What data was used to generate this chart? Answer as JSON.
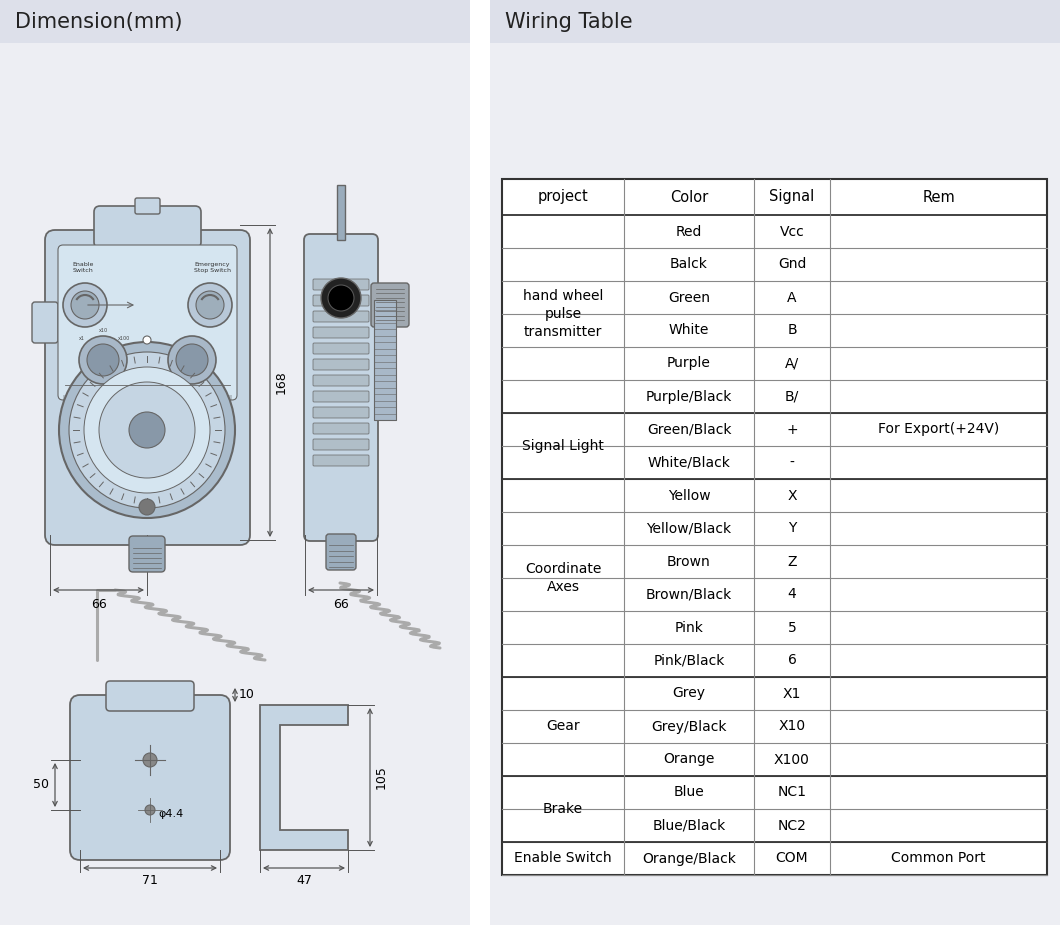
{
  "left_title": "Dimension(mm)",
  "right_title": "Wiring Table",
  "title_bg_color": "#dde0ea",
  "bg_color": "#edeef3",
  "table_headers": [
    "project",
    "Color",
    "Signal",
    "Rem"
  ],
  "table_data": [
    [
      "Red",
      "Vcc",
      ""
    ],
    [
      "Balck",
      "Gnd",
      ""
    ],
    [
      "Green",
      "A",
      ""
    ],
    [
      "White",
      "B",
      ""
    ],
    [
      "Purple",
      "A/",
      ""
    ],
    [
      "Purple/Black",
      "B/",
      ""
    ],
    [
      "Green/Black",
      "+",
      "For Export(+24V)"
    ],
    [
      "White/Black",
      "-",
      ""
    ],
    [
      "Yellow",
      "X",
      ""
    ],
    [
      "Yellow/Black",
      "Y",
      ""
    ],
    [
      "Brown",
      "Z",
      ""
    ],
    [
      "Brown/Black",
      "4",
      ""
    ],
    [
      "Pink",
      "5",
      ""
    ],
    [
      "Pink/Black",
      "6",
      ""
    ],
    [
      "Grey",
      "X1",
      ""
    ],
    [
      "Grey/Black",
      "X10",
      ""
    ],
    [
      "Orange",
      "X100",
      ""
    ],
    [
      "Blue",
      "NC1",
      ""
    ],
    [
      "Blue/Black",
      "NC2",
      ""
    ],
    [
      "Orange/Black",
      "COM",
      "Common Port"
    ]
  ],
  "groups": [
    [
      0,
      5,
      "hand wheel\npulse\ntransmitter"
    ],
    [
      6,
      7,
      "Signal Light"
    ],
    [
      8,
      13,
      "Coordinate\nAxes"
    ],
    [
      14,
      16,
      "Gear"
    ],
    [
      17,
      18,
      "Brake"
    ],
    [
      19,
      19,
      "Enable Switch"
    ]
  ],
  "dim_168": "168",
  "dim_66L": "66",
  "dim_66R": "66",
  "dim_71": "71",
  "dim_47": "47",
  "dim_50": "50",
  "dim_10": "10",
  "dim_105": "105",
  "dim_d44": "φ4.4",
  "device_color": "#c5d5e3",
  "device_edge": "#666666",
  "device_color2": "#d5e5f0"
}
